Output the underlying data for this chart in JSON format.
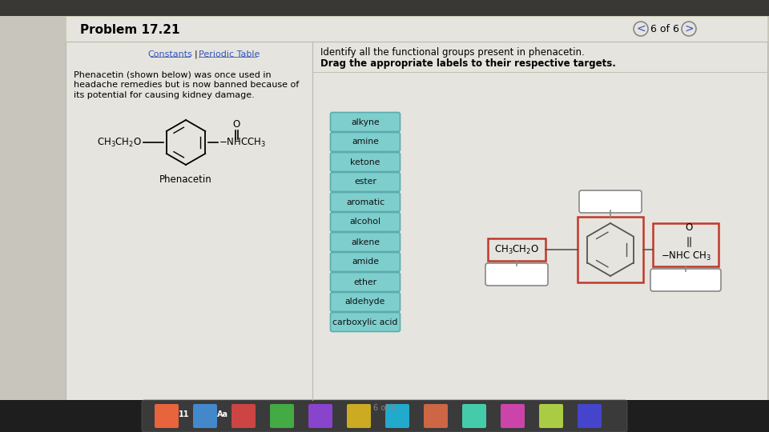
{
  "title": "Problem 17.21",
  "nav_text": "6 of 6",
  "instruction_line1": "Identify all the functional groups present in phenacetin.",
  "instruction_line2": "Drag the appropriate labels to their respective targets.",
  "constants_text": "Constants  |  Periodic Table",
  "description_lines": [
    "Phenacetin (shown below) was once used in",
    "headache remedies but is now banned because of",
    "its potential for causing kidney damage."
  ],
  "phenacetin_label": "Phenacetin",
  "labels": [
    "alkyne",
    "amine",
    "ketone",
    "ester",
    "aromatic",
    "alcohol",
    "alkene",
    "amide",
    "ether",
    "aldehyde",
    "carboxylic acid"
  ],
  "label_button_color": "#7ecece",
  "label_button_edge": "#5aacac",
  "bg_color": "#c8c5bc",
  "panel_color": "#e6e4de",
  "white": "#ffffff",
  "red_box_color": "#c0392b",
  "gray_box_color": "#888888",
  "header_bg": "#4a4845",
  "dark_bg": "#3a3835"
}
